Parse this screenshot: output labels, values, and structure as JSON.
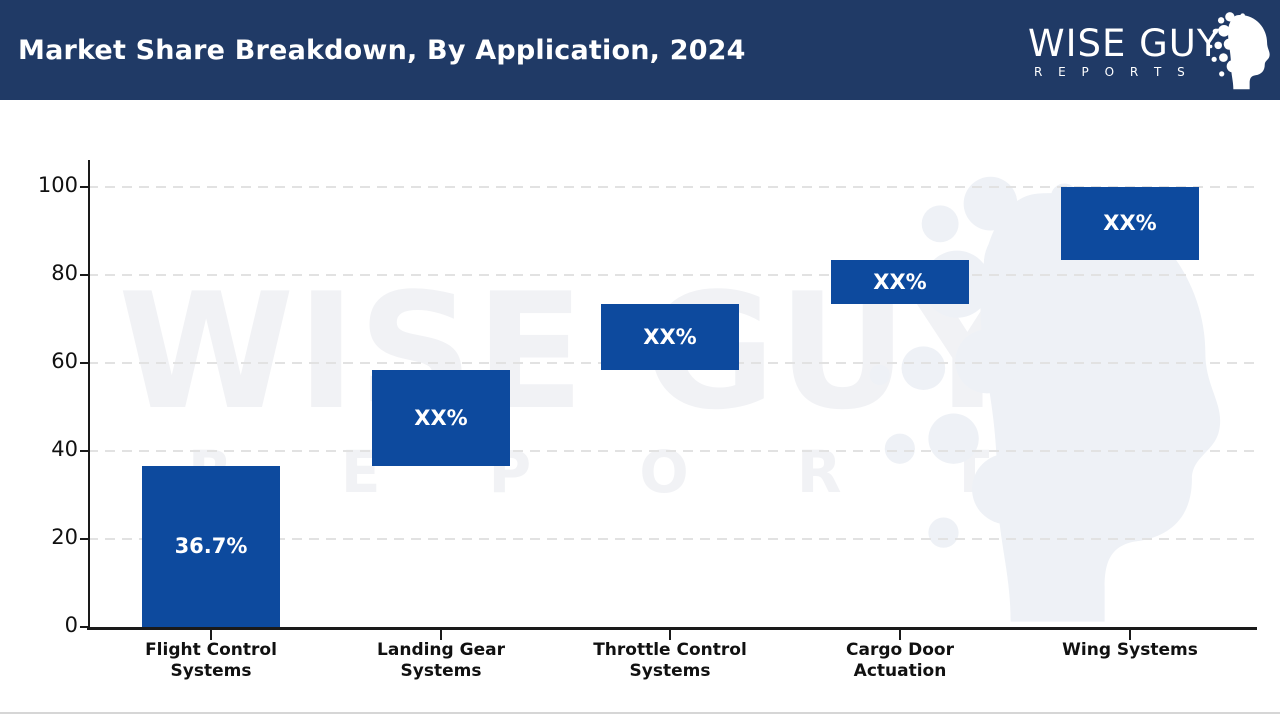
{
  "header": {
    "title": "Market Share Breakdown, By Application, 2024",
    "logo": {
      "line1": "WISE GUY",
      "line2": "R E P O R T S"
    }
  },
  "watermark": {
    "line1": "WISE GUY",
    "line2": "R E P O R T S"
  },
  "chart_data": {
    "type": "bar",
    "subtype": "waterfall",
    "title": "Market Share Breakdown, By Application, 2024",
    "categories": [
      "Flight Control Systems",
      "Landing Gear Systems",
      "Throttle Control Systems",
      "Cargo Door Actuation",
      "Wing Systems"
    ],
    "category_label_lines": [
      [
        "Flight Control",
        "Systems"
      ],
      [
        "Landing Gear",
        "Systems"
      ],
      [
        "Throttle Control",
        "Systems"
      ],
      [
        "Cargo Door",
        "Actuation"
      ],
      [
        "Wing Systems"
      ]
    ],
    "segments": [
      {
        "category": "Flight Control Systems",
        "start": 0,
        "end": 36.7,
        "label": "36.7%"
      },
      {
        "category": "Landing Gear Systems",
        "start": 36.7,
        "end": 58.5,
        "label": "XX%"
      },
      {
        "category": "Throttle Control Systems",
        "start": 58.5,
        "end": 73.5,
        "label": "XX%"
      },
      {
        "category": "Cargo Door Actuation",
        "start": 73.5,
        "end": 83.5,
        "label": "XX%"
      },
      {
        "category": "Wing Systems",
        "start": 83.5,
        "end": 100,
        "label": "XX%"
      }
    ],
    "yticks": [
      0,
      20,
      40,
      60,
      80,
      100
    ],
    "ylim": [
      0,
      105
    ],
    "xlabel": "",
    "ylabel": "",
    "grid": {
      "axis": "y",
      "style": "dashed"
    },
    "legend": null,
    "bar_color": "#0d4a9e"
  },
  "colors": {
    "header_bg": "#203a66",
    "bar": "#0d4a9e",
    "axis": "#1a1a1a",
    "grid": "#e2e2e2",
    "watermark": "#f1f2f5"
  }
}
